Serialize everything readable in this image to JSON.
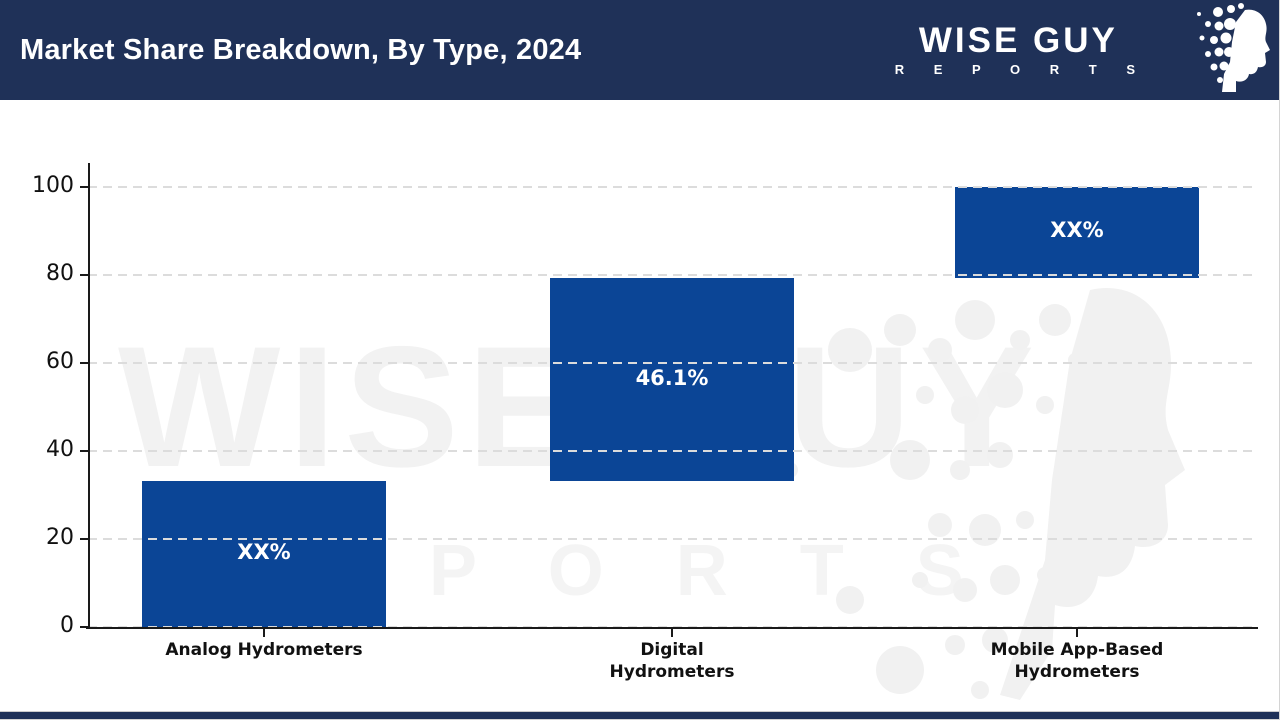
{
  "header": {
    "title": "Market Share Breakdown, By Type, 2024",
    "bg_color": "#1f3158",
    "logo": {
      "line1": "WISE GUY",
      "line2": "R E P O R T S"
    }
  },
  "watermark": {
    "line1": "WISE GUY",
    "line2": "R E P O R T S"
  },
  "chart_data": {
    "type": "bar",
    "subtype": "waterfall",
    "title": "Market Share Breakdown, By Type, 2024",
    "categories": [
      "Analog Hydrometers",
      "Digital Hydrometers",
      "Mobile App-Based Hydrometers"
    ],
    "category_label_lines": [
      [
        "Analog Hydrometers"
      ],
      [
        "Digital",
        "Hydrometers"
      ],
      [
        "Mobile App-Based",
        "Hydrometers"
      ]
    ],
    "segments": [
      {
        "category": "Analog Hydrometers",
        "start": 0,
        "end": 33.1,
        "label": "XX%"
      },
      {
        "category": "Digital Hydrometers",
        "start": 33.1,
        "end": 79.2,
        "label": "46.1%"
      },
      {
        "category": "Mobile App-Based Hydrometers",
        "start": 79.2,
        "end": 100,
        "label": "XX%"
      }
    ],
    "bar_color": "#0b4596",
    "bar_label_color": "#ffffff",
    "ylabel": "",
    "xlabel": "",
    "ylim": [
      0,
      100
    ],
    "yticks": [
      0,
      20,
      40,
      60,
      80,
      100
    ],
    "grid": "horizontal-dashed",
    "legend": "none"
  },
  "footer": {
    "bar_color": "#1f3158"
  }
}
